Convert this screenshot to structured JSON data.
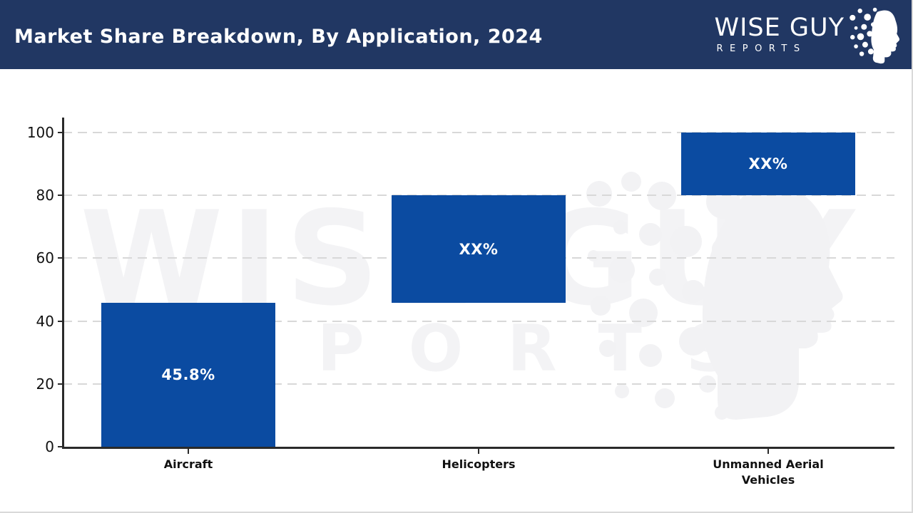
{
  "header": {
    "title": "Market Share Breakdown, By Application, 2024",
    "logo": {
      "name": "WISE GUY",
      "sub": "REPORTS"
    }
  },
  "watermark": {
    "name": "WISE GUY",
    "sub": "REPORTS"
  },
  "chart_data": {
    "type": "bar",
    "subtype": "waterfall",
    "title": "Market Share Breakdown, By Application, 2024",
    "xlabel": "",
    "ylabel": "",
    "ylim": [
      0,
      100
    ],
    "yticks": [
      0,
      20,
      40,
      60,
      80,
      100
    ],
    "grid": "horizontal-dashed",
    "legend": "none",
    "bar_color": "#0b4ba1",
    "label_color": "#ffffff",
    "categories": [
      "Aircraft",
      "Helicopters",
      "Unmanned Aerial Vehicles"
    ],
    "segments": [
      {
        "category": "Aircraft",
        "start": 0,
        "end": 45.8,
        "label": "45.8%"
      },
      {
        "category": "Helicopters",
        "start": 45.8,
        "end": 80,
        "label": "XX%"
      },
      {
        "category": "Unmanned Aerial Vehicles",
        "start": 80,
        "end": 100,
        "label": "XX%"
      }
    ]
  }
}
